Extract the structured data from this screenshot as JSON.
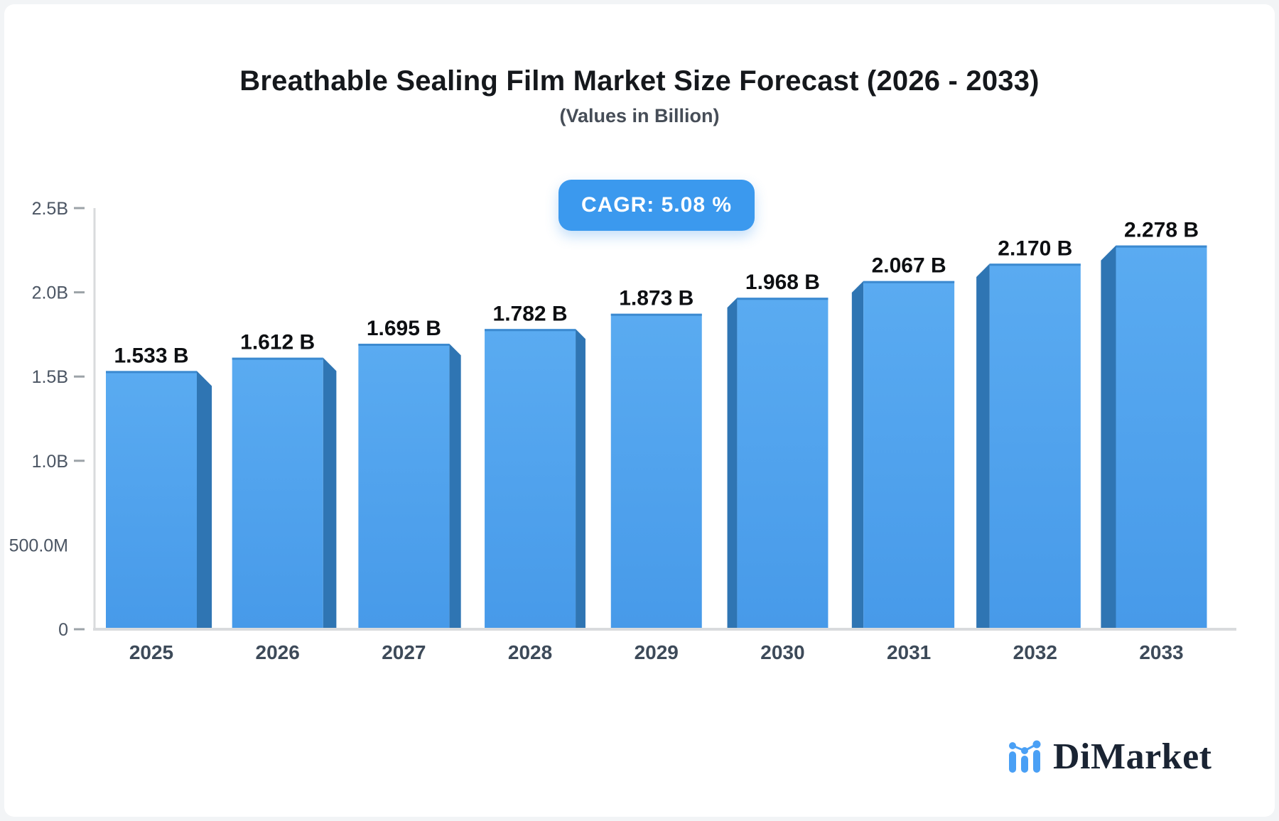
{
  "header": {
    "title": "Breathable Sealing Film Market Size Forecast (2026 - 2033)",
    "subtitle": "(Values in Billion)"
  },
  "badge": {
    "label": "CAGR: 5.08 %"
  },
  "chart_data": {
    "type": "bar",
    "title": "Breathable Sealing Film Market Size Forecast (2026 - 2033)",
    "subtitle": "(Values in Billion)",
    "categories": [
      "2025",
      "2026",
      "2027",
      "2028",
      "2029",
      "2030",
      "2031",
      "2032",
      "2033"
    ],
    "values": [
      1.533,
      1.612,
      1.695,
      1.782,
      1.873,
      1.968,
      2.067,
      2.17,
      2.278
    ],
    "value_labels": [
      "1.533 B",
      "1.612 B",
      "1.695 B",
      "1.782 B",
      "1.873 B",
      "1.968 B",
      "2.067 B",
      "2.170 B",
      "2.278 B"
    ],
    "xlabel": "",
    "ylabel": "",
    "ylim": [
      0,
      2.5
    ],
    "y_ticks": [
      {
        "label": "2.5B",
        "value": 2.5,
        "has_tick": true
      },
      {
        "label": "2.0B",
        "value": 2.0,
        "has_tick": true
      },
      {
        "label": "1.5B",
        "value": 1.5,
        "has_tick": true
      },
      {
        "label": "1.0B",
        "value": 1.0,
        "has_tick": true
      },
      {
        "label": "500.0M",
        "value": 0.5,
        "has_tick": false
      },
      {
        "label": "0",
        "value": 0.0,
        "has_tick": true
      }
    ],
    "grid": false,
    "legend": false,
    "annotation": "CAGR: 5.08 %",
    "style": "3d-perspective-bars, center vanishing point"
  },
  "colors": {
    "bar_face_top": "#5aabf1",
    "bar_face_bottom": "#479ae9",
    "bar_side": "#2f75b3",
    "bar_top_edge": "#3c8ad0",
    "badge_bg": "#3b99ee",
    "badge_text": "#ffffff",
    "axis_line": "#d9dbdd",
    "tick": "#9ca3a8",
    "y_label": "#4b5563",
    "x_label": "#3d4a59",
    "value_label": "#0d0f12",
    "logo_text": "#1a2433",
    "logo_blue": "#4aa0f5"
  },
  "logo": {
    "text": "DiMarket"
  }
}
